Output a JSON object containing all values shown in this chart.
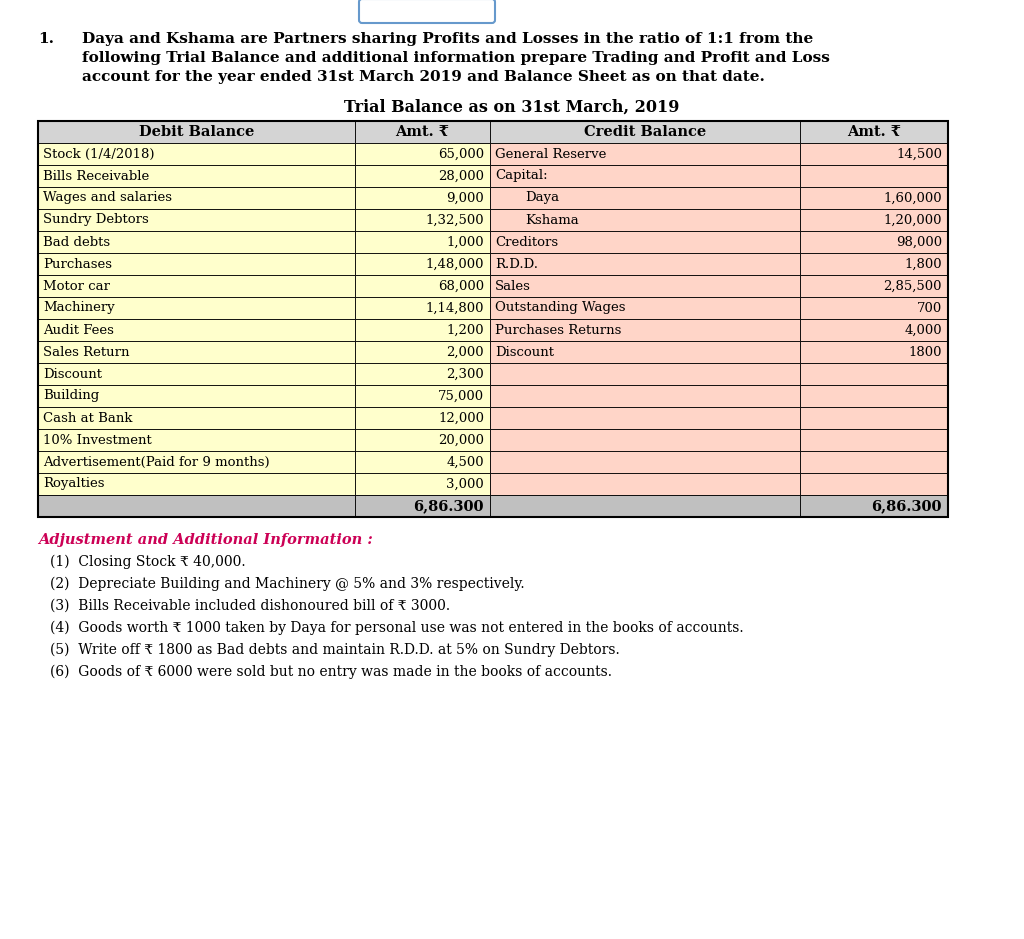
{
  "title_number": "1.",
  "title_lines": [
    "Daya and Kshama are Partners sharing Profits and Losses in the ratio of 1:1 from the",
    "following Trial Balance and additional information prepare Trading and Profit and Loss",
    "account for the year ended 31st March 2019 and Balance Sheet as on that date."
  ],
  "table_title": "Trial Balance as on 31st March, 2019",
  "headers": [
    "Debit Balance",
    "Amt. ₹",
    "Credit Balance",
    "Amt. ₹"
  ],
  "debit_rows": [
    [
      "Stock (1/4/2018)",
      "65,000"
    ],
    [
      "Bills Receivable",
      "28,000"
    ],
    [
      "Wages and salaries",
      "9,000"
    ],
    [
      "Sundry Debtors",
      "1,32,500"
    ],
    [
      "Bad debts",
      "1,000"
    ],
    [
      "Purchases",
      "1,48,000"
    ],
    [
      "Motor car",
      "68,000"
    ],
    [
      "Machinery",
      "1,14,800"
    ],
    [
      "Audit Fees",
      "1,200"
    ],
    [
      "Sales Return",
      "2,000"
    ],
    [
      "Discount",
      "2,300"
    ],
    [
      "Building",
      "75,000"
    ],
    [
      "Cash at Bank",
      "12,000"
    ],
    [
      "10% Investment",
      "20,000"
    ],
    [
      "Advertisement(Paid for 9 months)",
      "4,500"
    ],
    [
      "Royalties",
      "3,000"
    ]
  ],
  "credit_rows": [
    [
      "General Reserve",
      "14,500"
    ],
    [
      "Capital:",
      ""
    ],
    [
      "    Daya",
      "1,60,000"
    ],
    [
      "    Kshama",
      "1,20,000"
    ],
    [
      "Creditors",
      "98,000"
    ],
    [
      "R.D.D.",
      "1,800"
    ],
    [
      "Sales",
      "2,85,500"
    ],
    [
      "Outstanding Wages",
      "700"
    ],
    [
      "Purchases Returns",
      "4,000"
    ],
    [
      "Discount",
      "1800"
    ]
  ],
  "total_debit": "6,86.300",
  "total_credit": "6,86.300",
  "adj_title": "Adjustment and Additional Information :",
  "adj_points": [
    "(1)  Closing Stock ₹ 40,000.",
    "(2)  Depreciate Building and Machinery @ 5% and 3% respectively.",
    "(3)  Bills Receivable included dishonoured bill of ₹ 3000.",
    "(4)  Goods worth ₹ 1000 taken by Daya for personal use was not entered in the books of accounts.",
    "(5)  Write off ₹ 1800 as Bad debts and maintain R.D.D. at 5% on Sundry Debtors.",
    "(6)  Goods of ₹ 6000 were sold but no entry was made in the books of accounts."
  ],
  "bg_color_page": "#ffffff",
  "bg_color_debit": "#ffffcc",
  "bg_color_credit": "#ffd5c8",
  "bg_color_header": "#d4d4d4",
  "bg_color_total": "#c0c0c0",
  "text_color_main": "#000000",
  "text_color_adj_title": "#cc0055",
  "tab_color_fill": "#ffffff",
  "tab_color_edge": "#6699cc"
}
